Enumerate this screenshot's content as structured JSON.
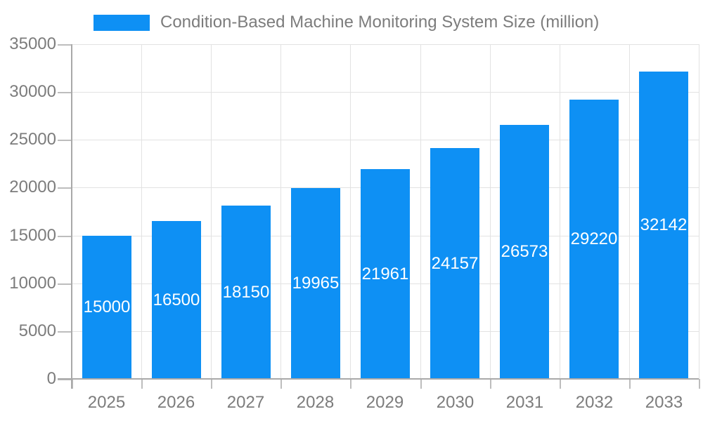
{
  "legend": {
    "label": "Condition-Based Machine Monitoring System Size (million)"
  },
  "chart_data": {
    "type": "bar",
    "title": "Condition-Based Machine Monitoring System Size (million)",
    "categories": [
      "2025",
      "2026",
      "2027",
      "2028",
      "2029",
      "2030",
      "2031",
      "2032",
      "2033"
    ],
    "values": [
      15000,
      16500,
      18150,
      19965,
      21961,
      24157,
      26573,
      29220,
      32142
    ],
    "series": [
      {
        "name": "Condition-Based Machine Monitoring System Size (million)",
        "values": [
          15000,
          16500,
          18150,
          19965,
          21961,
          24157,
          26573,
          29220,
          32142
        ]
      }
    ],
    "xlabel": "",
    "ylabel": "",
    "ylim": [
      0,
      35000
    ],
    "yticks": [
      0,
      5000,
      10000,
      15000,
      20000,
      25000,
      30000,
      35000
    ],
    "grid": true,
    "legend_position": "top",
    "value_labels": "inside-center"
  },
  "colors": {
    "bar": "#0e90f4",
    "axis": "#a9a9a9",
    "tick": "#bdbdbd",
    "grid": "#e2e2e2",
    "text": "#7c7c7c",
    "value_text": "#ffffff",
    "background": "#ffffff"
  }
}
